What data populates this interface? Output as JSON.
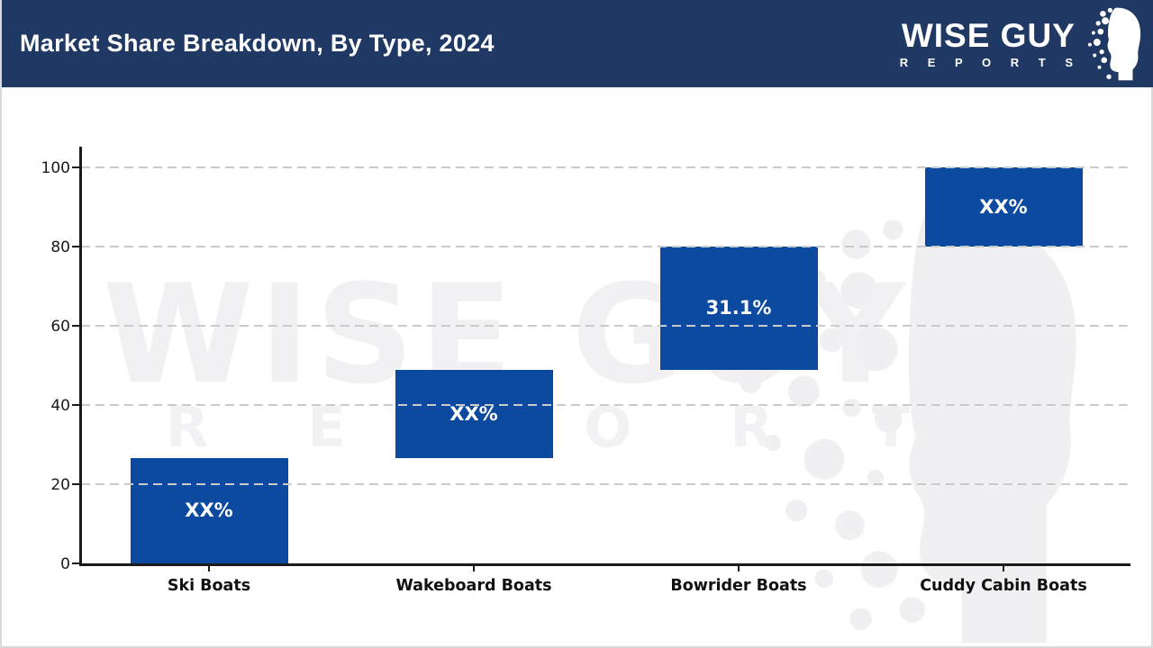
{
  "page": {
    "background": "#ffffff",
    "border_color": "#d9d9d9"
  },
  "header": {
    "title": "Market Share Breakdown, By Type, 2024",
    "background": "#1f3864",
    "logo": {
      "wordmark": "WISE GUY",
      "reports": "R E P O R T S"
    }
  },
  "watermark": {
    "line1": "WISE GUY",
    "line2": "R E P O R T S"
  },
  "chart_data": {
    "type": "bar",
    "subtype": "waterfall",
    "title": "Market Share Breakdown, By Type, 2024",
    "xlabel": "",
    "ylabel": "",
    "ylim": [
      0,
      100
    ],
    "y_ticks": [
      0,
      20,
      40,
      60,
      80,
      100
    ],
    "grid": true,
    "grid_style": "dashed",
    "legend": "none",
    "bar_color": "#0b4a9e",
    "categories": [
      "Ski Boats",
      "Wakeboard Boats",
      "Bowrider Boats",
      "Cuddy Cabin Boats"
    ],
    "values": [
      26.6,
      22.3,
      31.1,
      20.0
    ],
    "segments": [
      {
        "category": "Ski Boats",
        "start": 0,
        "end": 26.6,
        "label": "XX%"
      },
      {
        "category": "Wakeboard Boats",
        "start": 26.6,
        "end": 48.9,
        "label": "XX%"
      },
      {
        "category": "Bowrider Boats",
        "start": 48.9,
        "end": 80.0,
        "label": "31.1%"
      },
      {
        "category": "Cuddy Cabin Boats",
        "start": 80.0,
        "end": 100,
        "label": "XX%"
      }
    ]
  }
}
